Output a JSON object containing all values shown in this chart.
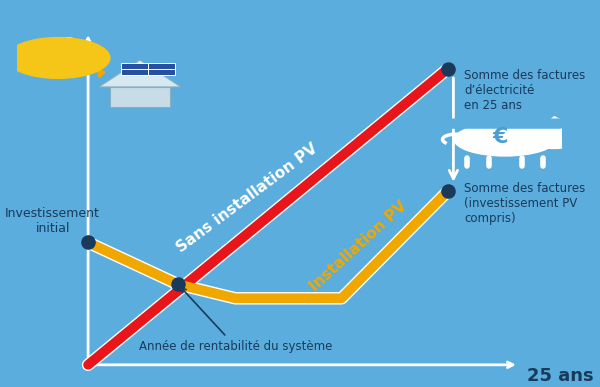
{
  "bg_color": "#5aaddc",
  "axis_color": "white",
  "red_line_color": "#e8151b",
  "orange_line_color": "#f0a800",
  "dot_color": "#1a3a5c",
  "euro_label": "€",
  "x_label": "25 ans",
  "label_sans_pv": "Sans installation PV",
  "label_pv": "Installation PV",
  "label_invest": "Investissement\ninitial",
  "label_annee": "Année de rentabilité du système",
  "label_somme_elec": "Somme des factures\nd’électricité\nen 25 ans",
  "label_somme_pv": "Somme des factures\n(investissement PV\ncompris)",
  "text_color_dark": "#1a3a5c",
  "text_color_orange": "#f0a800",
  "text_color_white": "white",
  "sun_color": "#f5c518",
  "orange_arrow_color": "#f0a800",
  "house_body_color": "#c8dce8",
  "house_roof_color": "#d8e8f0",
  "panel_color": "#2850a0",
  "pig_color": "white",
  "pig_euro_color": "#4a9fcf"
}
